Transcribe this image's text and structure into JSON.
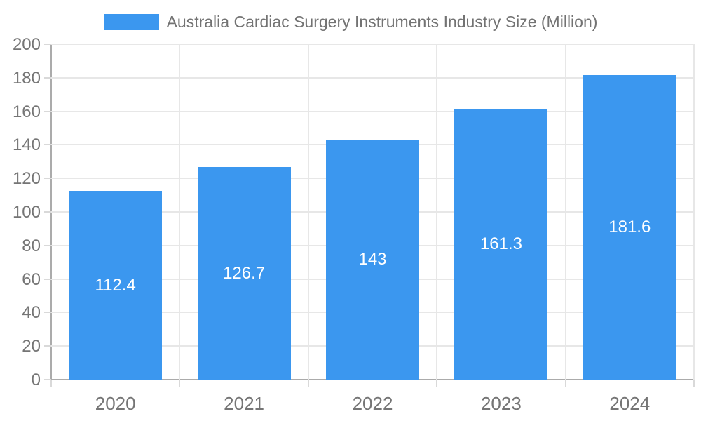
{
  "chart_data": {
    "type": "bar",
    "title": "Australia Cardiac Surgery Instruments Industry Size (Million)",
    "categories": [
      "2020",
      "2021",
      "2022",
      "2023",
      "2024"
    ],
    "series": [
      {
        "name": "Australia Cardiac Surgery Instruments Industry Size (Million)",
        "values": [
          112.4,
          126.7,
          143,
          161.3,
          181.6
        ]
      }
    ],
    "value_labels": [
      "112.4",
      "126.7",
      "143",
      "161.3",
      "181.6"
    ],
    "xlabel": "",
    "ylabel": "",
    "ylim": [
      0,
      200
    ],
    "ytick_step": 20,
    "ytick_labels": [
      "0",
      "20",
      "40",
      "60",
      "80",
      "100",
      "120",
      "140",
      "160",
      "180",
      "200"
    ],
    "grid": true,
    "legend_position": "top-center",
    "colors": {
      "bar": "#3B97EF",
      "grid": "#E7E7E7",
      "axis": "#ABABAB",
      "tick": "#D9D9D9",
      "tick_label": "#757575",
      "value_label": "#FFFFFF",
      "legend_text": "#737373",
      "background": "#FFFFFF"
    }
  }
}
